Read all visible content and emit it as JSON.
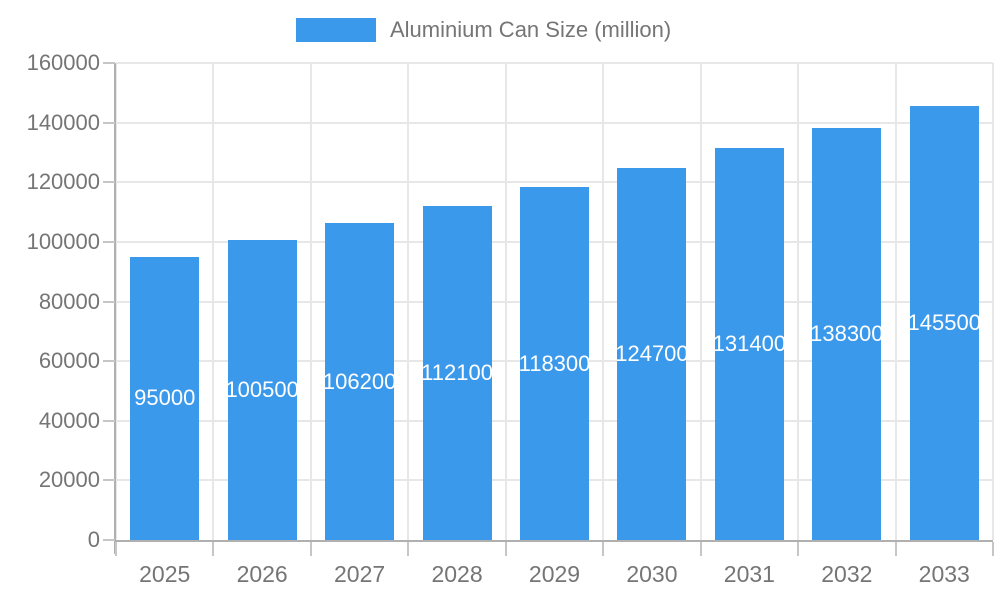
{
  "legend": {
    "label": "Aluminium Can Size (million)"
  },
  "colors": {
    "bar": "#3b99ec",
    "grid": "#e7e7e7",
    "axis": "#b0b0b0",
    "tick": "#c6c6c6",
    "text": "#757575",
    "bar_label": "#ffffff",
    "background": "#ffffff"
  },
  "chart_data": {
    "type": "bar",
    "title": "",
    "xlabel": "",
    "ylabel": "",
    "categories": [
      "2025",
      "2026",
      "2027",
      "2028",
      "2029",
      "2030",
      "2031",
      "2032",
      "2033"
    ],
    "series": [
      {
        "name": "Aluminium Can Size (million)",
        "values": [
          95000,
          100500,
          106200,
          112100,
          118300,
          124700,
          131400,
          138300,
          145500
        ]
      }
    ],
    "bar_value_labels": [
      "95000",
      "100500",
      "106200",
      "112100",
      "118300",
      "124700",
      "131400",
      "138300",
      "145500"
    ],
    "ylim": [
      0,
      160000
    ],
    "ytick_step": 20000,
    "ytick_labels": [
      "0",
      "20000",
      "40000",
      "60000",
      "80000",
      "100000",
      "120000",
      "140000",
      "160000"
    ],
    "grid": true,
    "legend_position": "top",
    "value_labels_inside_bars": true
  }
}
